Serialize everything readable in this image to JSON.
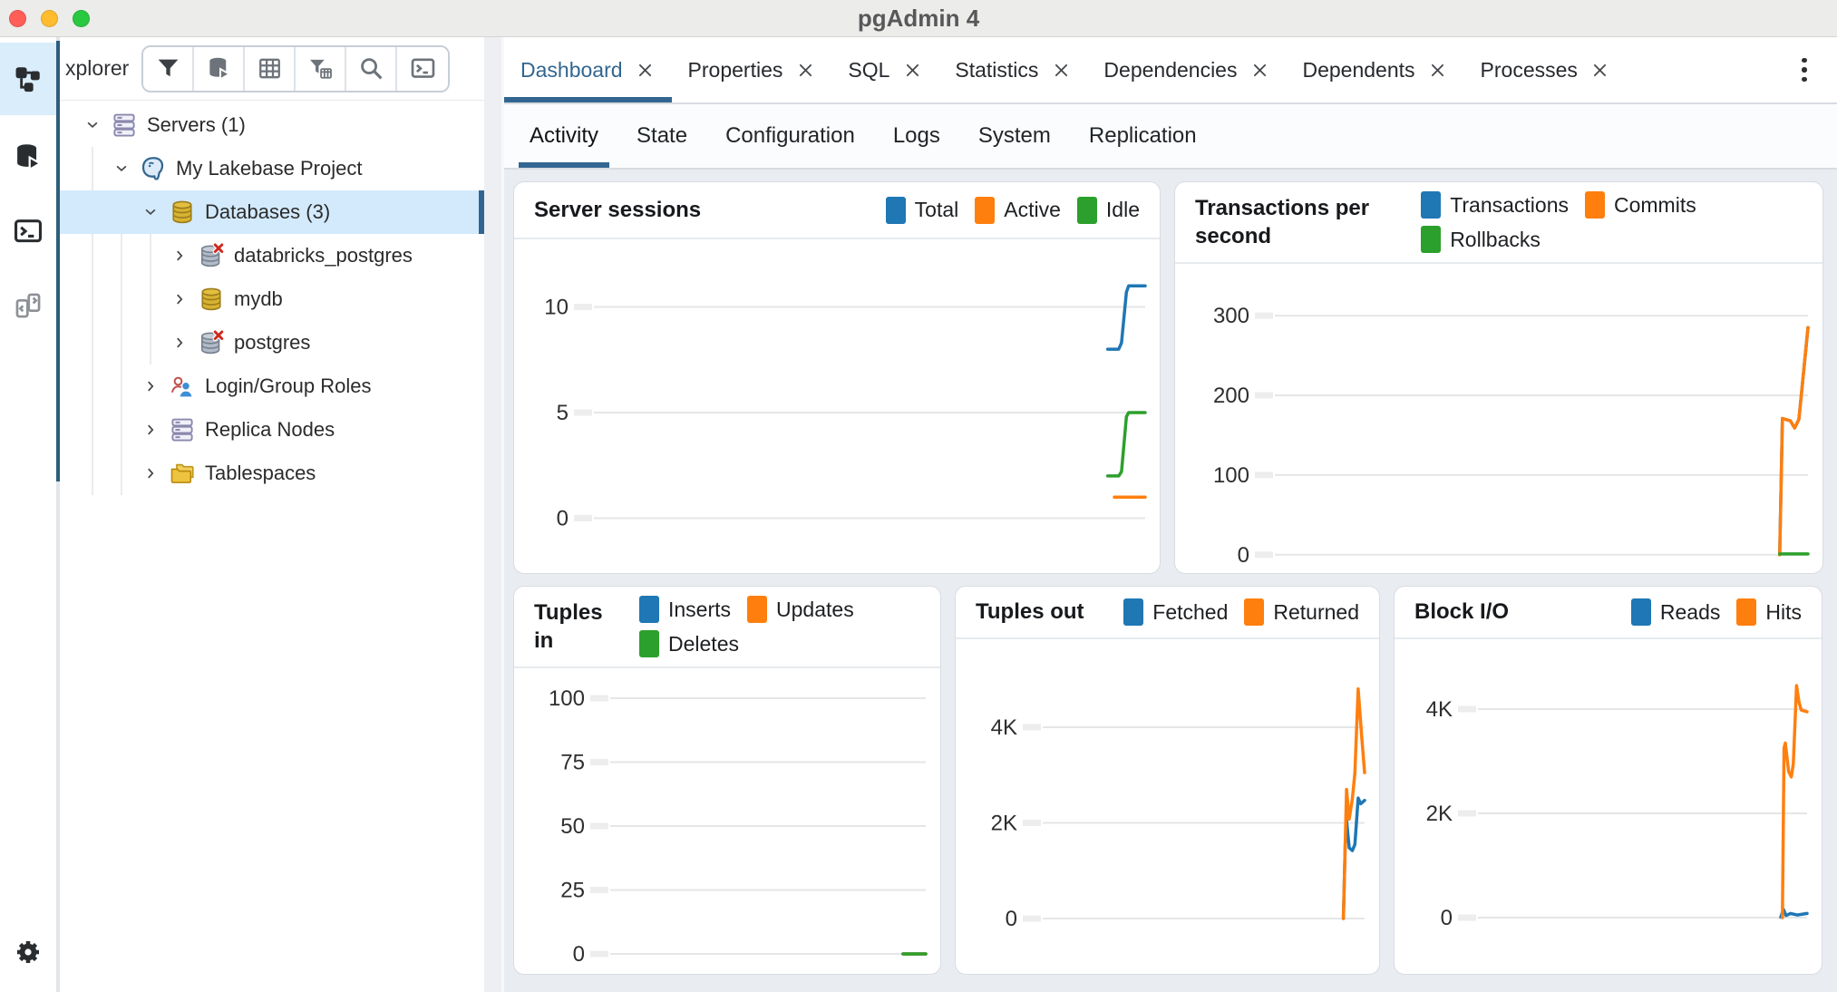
{
  "colors": {
    "accent": "#326690",
    "series_blue": "#1f77b4",
    "series_orange": "#ff7f0e",
    "series_green": "#2ca02c",
    "tree_selection_bg": "#d3eafc"
  },
  "titlebar": {
    "title": "pgAdmin 4",
    "traffic_lights": [
      "close",
      "minimize",
      "zoom"
    ]
  },
  "rail": {
    "items": [
      {
        "icon": "object-explorer-icon",
        "active": true,
        "dim": false
      },
      {
        "icon": "database-play-icon",
        "active": false,
        "dim": false
      },
      {
        "icon": "terminal-prompt-icon",
        "active": false,
        "dim": false
      },
      {
        "icon": "workspace-switch-icon",
        "active": false,
        "dim": true
      }
    ],
    "bottom_icon": "settings-gear-icon"
  },
  "explorer": {
    "label": "xplorer",
    "toolbar_icons": [
      "filter-icon",
      "database-play-icon",
      "table-grid-icon",
      "filter-table-icon",
      "search-icon",
      "terminal-prompt-icon"
    ],
    "tree": [
      {
        "label": "Servers (1)",
        "icon": "server-group-icon",
        "expanded": true,
        "level": 0,
        "selected": false
      },
      {
        "label": "My Lakebase Project",
        "icon": "postgres-server-icon",
        "expanded": true,
        "level": 1,
        "selected": false
      },
      {
        "label": "Databases (3)",
        "icon": "database-gold-icon",
        "expanded": true,
        "level": 2,
        "selected": true
      },
      {
        "label": "databricks_postgres",
        "icon": "database-disconnected-icon",
        "expanded": false,
        "level": 3,
        "selected": false
      },
      {
        "label": "mydb",
        "icon": "database-gold-icon",
        "expanded": false,
        "level": 3,
        "selected": false
      },
      {
        "label": "postgres",
        "icon": "database-disconnected-icon",
        "expanded": false,
        "level": 3,
        "selected": false
      },
      {
        "label": "Login/Group Roles",
        "icon": "login-roles-icon",
        "expanded": false,
        "level": 2,
        "selected": false
      },
      {
        "label": "Replica Nodes",
        "icon": "replica-nodes-icon",
        "expanded": false,
        "level": 2,
        "selected": false
      },
      {
        "label": "Tablespaces",
        "icon": "tablespaces-icon",
        "expanded": false,
        "level": 2,
        "selected": false
      }
    ]
  },
  "tabs": {
    "items": [
      {
        "label": "Dashboard",
        "active": true,
        "closable": true
      },
      {
        "label": "Properties",
        "active": false,
        "closable": true
      },
      {
        "label": "SQL",
        "active": false,
        "closable": true
      },
      {
        "label": "Statistics",
        "active": false,
        "closable": true
      },
      {
        "label": "Dependencies",
        "active": false,
        "closable": true
      },
      {
        "label": "Dependents",
        "active": false,
        "closable": true
      },
      {
        "label": "Processes",
        "active": false,
        "closable": true
      }
    ],
    "overflow_menu_icon": "kebab-menu-icon"
  },
  "subtabs": [
    {
      "label": "Activity",
      "active": true
    },
    {
      "label": "State",
      "active": false
    },
    {
      "label": "Configuration",
      "active": false
    },
    {
      "label": "Logs",
      "active": false
    },
    {
      "label": "System",
      "active": false
    },
    {
      "label": "Replication",
      "active": false
    }
  ],
  "chart_data": [
    {
      "type": "line",
      "title": "Server sessions",
      "grid": true,
      "legend_position": "top-right",
      "yticks": [
        {
          "label": "10",
          "value": 10
        },
        {
          "label": "5",
          "value": 5
        },
        {
          "label": "0",
          "value": 0
        }
      ],
      "ylim": [
        -2.6,
        13.2
      ],
      "series": [
        {
          "name": "Total",
          "color": "#1f77b4",
          "points": [
            [
              0.932,
              8
            ],
            [
              0.952,
              8
            ],
            [
              0.957,
              8.3
            ],
            [
              0.966,
              10.7
            ],
            [
              0.97,
              11
            ],
            [
              1,
              11
            ]
          ]
        },
        {
          "name": "Active",
          "color": "#ff7f0e",
          "points": [
            [
              0.944,
              1
            ],
            [
              1,
              1
            ]
          ]
        },
        {
          "name": "Idle",
          "color": "#2ca02c",
          "points": [
            [
              0.932,
              2
            ],
            [
              0.952,
              2
            ],
            [
              0.957,
              2.2
            ],
            [
              0.966,
              4.8
            ],
            [
              0.97,
              5
            ],
            [
              1,
              5
            ]
          ]
        }
      ]
    },
    {
      "type": "line",
      "title": "Transactions per second",
      "grid": true,
      "legend_position": "top-right",
      "yticks": [
        {
          "label": "300",
          "value": 300
        },
        {
          "label": "200",
          "value": 200
        },
        {
          "label": "100",
          "value": 100
        },
        {
          "label": "0",
          "value": 0
        }
      ],
      "ylim": [
        -23,
        365
      ],
      "series": [
        {
          "name": "Transactions",
          "color": "#1f77b4",
          "points": [
            [
              0.947,
              0
            ],
            [
              0.952,
              171
            ],
            [
              0.967,
              168
            ],
            [
              0.975,
              159
            ],
            [
              0.983,
              170
            ],
            [
              1,
              285
            ]
          ]
        },
        {
          "name": "Commits",
          "color": "#ff7f0e",
          "points": [
            [
              0.947,
              0
            ],
            [
              0.952,
              171
            ],
            [
              0.967,
              168
            ],
            [
              0.975,
              159
            ],
            [
              0.983,
              170
            ],
            [
              1,
              285
            ]
          ]
        },
        {
          "name": "Rollbacks",
          "color": "#2ca02c",
          "points": [
            [
              0.947,
              1
            ],
            [
              1,
              1
            ]
          ]
        }
      ]
    },
    {
      "type": "line",
      "title": "Tuples in",
      "grid": true,
      "legend_position": "top-right",
      "yticks": [
        {
          "label": "100",
          "value": 100
        },
        {
          "label": "75",
          "value": 75
        },
        {
          "label": "50",
          "value": 50
        },
        {
          "label": "25",
          "value": 25
        },
        {
          "label": "0",
          "value": 0
        }
      ],
      "ylim": [
        -7.8,
        111.7
      ],
      "series": [
        {
          "name": "Inserts",
          "color": "#1f77b4",
          "points": [
            [
              0.928,
              0
            ],
            [
              1,
              0
            ]
          ]
        },
        {
          "name": "Updates",
          "color": "#ff7f0e",
          "points": [
            [
              0.928,
              0
            ],
            [
              1,
              0
            ]
          ]
        },
        {
          "name": "Deletes",
          "color": "#2ca02c",
          "points": [
            [
              0.928,
              0
            ],
            [
              1,
              0
            ]
          ]
        }
      ]
    },
    {
      "type": "line",
      "title": "Tuples out",
      "grid": true,
      "legend_position": "top-right",
      "yticks": [
        {
          "label": "4K",
          "value": 4000
        },
        {
          "label": "2K",
          "value": 2000
        },
        {
          "label": "0",
          "value": 0
        }
      ],
      "ylim": [
        -1157,
        5839
      ],
      "series": [
        {
          "name": "Fetched",
          "color": "#1f77b4",
          "points": [
            [
              0.934,
              0
            ],
            [
              0.94,
              1600
            ],
            [
              0.944,
              2050
            ],
            [
              0.952,
              1480
            ],
            [
              0.962,
              1420
            ],
            [
              0.97,
              1550
            ],
            [
              0.98,
              2520
            ],
            [
              0.988,
              2400
            ],
            [
              1,
              2470
            ]
          ]
        },
        {
          "name": "Returned",
          "color": "#ff7f0e",
          "points": [
            [
              0.934,
              0
            ],
            [
              0.944,
              2700
            ],
            [
              0.952,
              2080
            ],
            [
              0.962,
              2500
            ],
            [
              0.97,
              3050
            ],
            [
              0.98,
              4800
            ],
            [
              0.99,
              3900
            ],
            [
              1,
              3050
            ]
          ]
        }
      ]
    },
    {
      "type": "line",
      "title": "Block I/O",
      "grid": true,
      "legend_position": "top-right",
      "yticks": [
        {
          "label": "4K",
          "value": 4000
        },
        {
          "label": "2K",
          "value": 2000
        },
        {
          "label": "0",
          "value": 0
        }
      ],
      "ylim": [
        -1078,
        5339
      ],
      "series": [
        {
          "name": "Reads",
          "color": "#1f77b4",
          "points": [
            [
              0.92,
              10
            ],
            [
              0.928,
              160
            ],
            [
              0.936,
              40
            ],
            [
              0.95,
              80
            ],
            [
              0.97,
              50
            ],
            [
              1,
              80
            ]
          ]
        },
        {
          "name": "Hits",
          "color": "#ff7f0e",
          "points": [
            [
              0.925,
              0
            ],
            [
              0.93,
              3250
            ],
            [
              0.934,
              3350
            ],
            [
              0.944,
              2800
            ],
            [
              0.952,
              2700
            ],
            [
              0.958,
              2950
            ],
            [
              0.968,
              4450
            ],
            [
              0.975,
              4150
            ],
            [
              0.982,
              3980
            ],
            [
              1,
              3950
            ]
          ]
        }
      ]
    }
  ]
}
